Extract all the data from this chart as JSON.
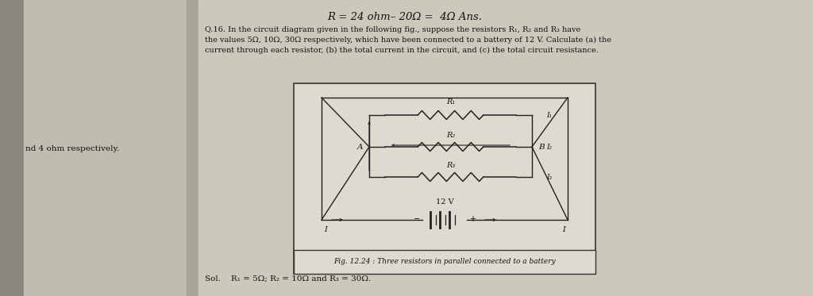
{
  "bg_left_color": "#b8b4a8",
  "bg_right_color": "#ccc8bc",
  "bg_mid_color": "#c4c0b4",
  "title_text": "R = 24 ohm– 20Ω = 4Ω Ans.",
  "q16_line1": "Q.16. In the circuit diagram given in the following fig., suppose the resistors R",
  "q16_line2": "the values 5Ω, 10Ω, 30Ω respectively, which have been connected to a battery of 12 V. Calculate (a) the",
  "q16_line3": "current through each resistor, (b) the total current in the circuit, and (c) the total circuit resistance.",
  "left_text": "nd 4 ohm respectively.",
  "bottom_text": "Sol.    R₁ = 5Ω; R₂ = 10Ω and R₃ = 30Ω.",
  "fig_caption": "Fig. 12.24 : Three resistors in parallel connected to a battery",
  "circuit_bg": "#e8e4d8",
  "circuit_line_color": "#222222"
}
